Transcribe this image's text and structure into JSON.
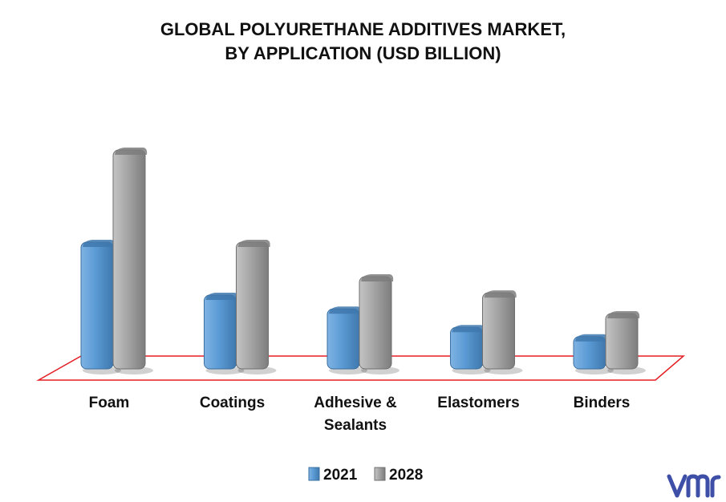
{
  "chart_data": {
    "type": "bar",
    "title_lines": [
      "GLOBAL POLYURETHANE ADDITIVES MARKET,",
      "BY APPLICATION (USD BILLION)"
    ],
    "categories": [
      [
        "Foam"
      ],
      [
        "Coatings"
      ],
      [
        "Adhesive &",
        "Sealants"
      ],
      [
        "Elastomers"
      ],
      [
        "Binders"
      ]
    ],
    "series": [
      {
        "name": "2021",
        "values": [
          5.5,
          3.2,
          2.6,
          1.8,
          1.4
        ],
        "color": "#5b9bd5"
      },
      {
        "name": "2028",
        "values": [
          9.5,
          5.5,
          4.0,
          3.3,
          2.4
        ],
        "color": "#a5a5a5"
      }
    ],
    "ylim": [
      0,
      10
    ],
    "grid": false,
    "legend_position": "bottom",
    "floor_outline_color": "#e31e24"
  },
  "branding": {
    "logo_icon": "vmr-logo-icon",
    "logo_color": "#3e4fa8"
  }
}
